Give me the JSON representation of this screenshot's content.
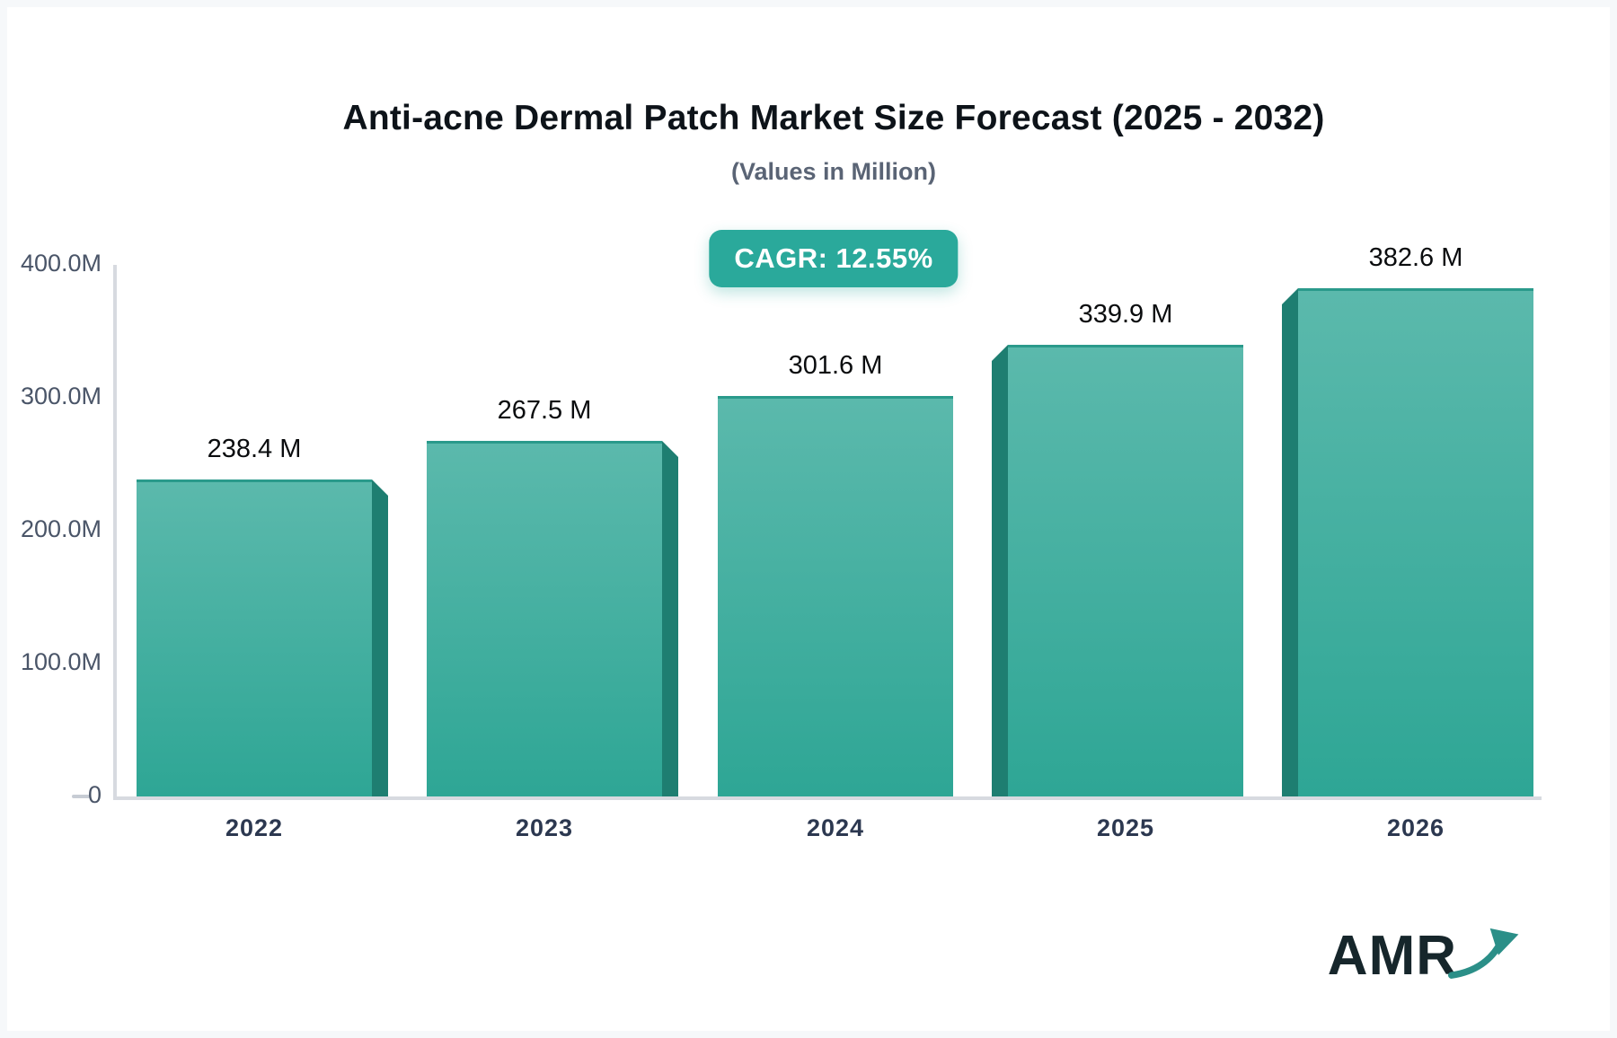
{
  "page": {
    "background": "#f6f8fa",
    "card_background": "#ffffff"
  },
  "header": {
    "title": "Anti-acne Dermal Patch Market Size Forecast (2025 - 2032)",
    "subtitle": "(Values in Million)",
    "cagr_badge": "CAGR: 12.55%",
    "badge_color": "#2aa99b"
  },
  "chart_data": {
    "type": "bar",
    "categories": [
      "2022",
      "2023",
      "2024",
      "2025",
      "2026"
    ],
    "values": [
      238.4,
      267.5,
      301.6,
      339.9,
      382.6
    ],
    "bar_labels": [
      "238.4 M",
      "267.5 M",
      "301.6 M",
      "339.9 M",
      "382.6 M"
    ],
    "y_ticks": [
      {
        "label": "400.0M",
        "value": 400
      },
      {
        "label": "300.0M",
        "value": 300
      },
      {
        "label": "200.0M",
        "value": 200
      },
      {
        "label": "100.0M",
        "value": 100
      },
      {
        "label": "0",
        "value": 0
      }
    ],
    "ylim": [
      0,
      400
    ],
    "unit": "Million",
    "grid": "off",
    "legend": "none",
    "colors": {
      "bar_top": "#5bb9ac",
      "bar_bottom": "#2ea695",
      "bar_side": "#1e7e71",
      "bar_top_edge": "#2a9a8b",
      "axis": "#d7dae0"
    }
  },
  "logo": {
    "text": "AMR",
    "arrow_color": "#2b8f88"
  }
}
